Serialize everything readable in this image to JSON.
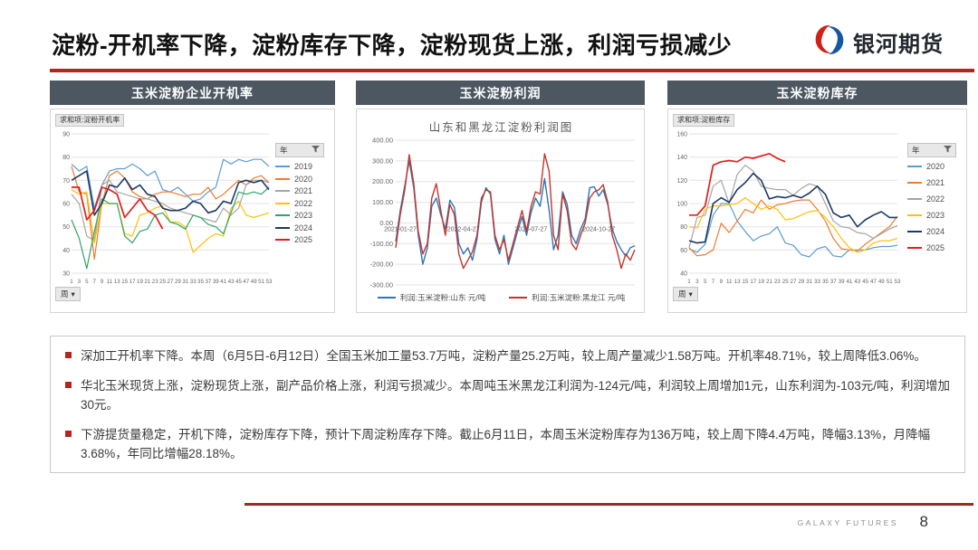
{
  "slide": {
    "title": "淀粉-开机率下降，淀粉库存下降，淀粉现货上涨，利润亏损减少",
    "logo_text": "银河期货",
    "footer_brand": "GALAXY FUTURES",
    "page_number": "8",
    "accent_red": "#b3251e",
    "header_bg": "#4d5761",
    "icons": {
      "dropdown": "▾"
    }
  },
  "panels": [
    {
      "header": "玉米淀粉企业开机率"
    },
    {
      "header": "玉米淀粉利润"
    },
    {
      "header": "玉米淀粉库存"
    }
  ],
  "chart_data": [
    {
      "type": "line",
      "title": "求和项:淀粉开机率",
      "legend_field": "年",
      "axis_field": "周",
      "x": [
        1,
        3,
        5,
        7,
        9,
        11,
        13,
        15,
        17,
        19,
        21,
        23,
        25,
        27,
        29,
        31,
        33,
        35,
        37,
        39,
        41,
        43,
        45,
        47,
        49,
        51,
        53
      ],
      "xlabel": "周",
      "ylabel": "",
      "ylim": [
        30,
        90
      ],
      "y_step": 10,
      "grid": true,
      "legend_position": "right",
      "series": [
        {
          "name": "2019",
          "color": "#5b9bd5",
          "stroke": 1.2,
          "values": [
            77,
            74,
            76,
            58,
            68,
            74,
            75,
            75,
            77,
            75,
            72,
            74,
            66,
            65,
            67,
            64,
            61,
            62,
            65,
            67,
            79,
            77,
            79,
            78,
            79,
            79,
            76
          ]
        },
        {
          "name": "2020",
          "color": "#ed7d31",
          "stroke": 1.2,
          "values": [
            76,
            65,
            64,
            36,
            60,
            72,
            74,
            71,
            65,
            63,
            62,
            64,
            65,
            65,
            64,
            63,
            64,
            64,
            67,
            62,
            64,
            67,
            70,
            68,
            71,
            72,
            69
          ]
        },
        {
          "name": "2021",
          "color": "#a5a5a5",
          "stroke": 1.2,
          "values": [
            64,
            60,
            46,
            44,
            68,
            70,
            65,
            64,
            63,
            62,
            62,
            61,
            60,
            58,
            57,
            56,
            55,
            54,
            53,
            52,
            58,
            55,
            58,
            68,
            70,
            70,
            69
          ]
        },
        {
          "name": "2022",
          "color": "#ffc000",
          "stroke": 1.2,
          "values": [
            66,
            64,
            65,
            43,
            60,
            60,
            60,
            47,
            46,
            55,
            56,
            58,
            59,
            52,
            52,
            50,
            39,
            42,
            45,
            47,
            46,
            58,
            61,
            55,
            54,
            55,
            56
          ]
        },
        {
          "name": "2023",
          "color": "#2fa463",
          "stroke": 1.2,
          "values": [
            53,
            45,
            32,
            48,
            62,
            60,
            60,
            46,
            43,
            48,
            49,
            55,
            56,
            52,
            51,
            49,
            55,
            54,
            51,
            50,
            47,
            56,
            65,
            64,
            65,
            64,
            67
          ]
        },
        {
          "name": "2024",
          "color": "#1f3864",
          "stroke": 1.6,
          "values": [
            70,
            72,
            74,
            55,
            60,
            68,
            67,
            71,
            66,
            68,
            64,
            63,
            58,
            57,
            57,
            58,
            61,
            60,
            56,
            57,
            61,
            60,
            69,
            70,
            69,
            70,
            66
          ]
        },
        {
          "name": "2025",
          "color": "#e01f1f",
          "stroke": 1.7,
          "values": [
            67,
            67,
            53,
            57,
            67,
            66,
            64,
            54,
            58,
            62,
            57,
            55,
            49
          ]
        }
      ]
    },
    {
      "type": "line",
      "title": "山东和黑龙江淀粉利润图",
      "xlabel": "",
      "ylabel": "元/吨",
      "ylim": [
        -300,
        400
      ],
      "y_step": 100,
      "grid": true,
      "legend_position": "bottom",
      "x_ticks": [
        {
          "label": "2021-01-27",
          "index": 1
        },
        {
          "label": "2022-04-27",
          "index": 15
        },
        {
          "label": "2023-07-27",
          "index": 30
        },
        {
          "label": "2024-10-27",
          "index": 45
        }
      ],
      "series": [
        {
          "name": "利润:玉米淀粉:山东 元/吨",
          "color": "#2e75b6",
          "stroke": 1.4,
          "values": [
            -90,
            60,
            180,
            300,
            170,
            -60,
            -200,
            -120,
            80,
            120,
            40,
            -30,
            110,
            75,
            -100,
            -150,
            -120,
            -180,
            -80,
            100,
            170,
            140,
            -80,
            -150,
            -60,
            -200,
            -120,
            -40,
            30,
            -60,
            50,
            120,
            80,
            215,
            60,
            -130,
            -60,
            150,
            90,
            -60,
            -100,
            -30,
            20,
            170,
            175,
            130,
            160,
            90,
            -30,
            -90,
            -130,
            -160,
            -120,
            -110
          ]
        },
        {
          "name": "利润:玉米淀粉:黑龙江 元/吨",
          "color": "#c3362b",
          "stroke": 1.4,
          "values": [
            -120,
            40,
            160,
            330,
            190,
            -40,
            -150,
            -100,
            120,
            190,
            60,
            -60,
            90,
            40,
            -150,
            -220,
            -180,
            -140,
            -60,
            120,
            160,
            150,
            -60,
            -130,
            -80,
            -180,
            -100,
            -20,
            60,
            -40,
            80,
            150,
            140,
            335,
            250,
            -60,
            -130,
            140,
            60,
            -100,
            -130,
            -60,
            0,
            120,
            150,
            160,
            185,
            100,
            -60,
            -130,
            -220,
            -150,
            -180,
            -130
          ]
        }
      ]
    },
    {
      "type": "line",
      "title": "求和项:淀粉库存",
      "legend_field": "年",
      "axis_field": "周",
      "x": [
        1,
        3,
        5,
        7,
        9,
        11,
        13,
        15,
        17,
        19,
        21,
        23,
        25,
        27,
        29,
        31,
        33,
        35,
        37,
        39,
        41,
        43,
        45,
        47,
        49,
        51,
        53
      ],
      "xlabel": "周",
      "ylabel": "",
      "ylim": [
        40,
        160
      ],
      "y_step": 20,
      "grid": true,
      "legend_position": "right",
      "series": [
        {
          "name": "2020",
          "color": "#5b9bd5",
          "stroke": 1.2,
          "values": [
            61,
            58,
            65,
            90,
            100,
            100,
            85,
            76,
            68,
            72,
            74,
            80,
            66,
            64,
            56,
            54,
            61,
            63,
            55,
            54,
            60,
            60,
            60,
            62,
            63,
            63,
            64
          ]
        },
        {
          "name": "2021",
          "color": "#ed7d31",
          "stroke": 1.2,
          "values": [
            62,
            55,
            56,
            60,
            83,
            75,
            85,
            95,
            92,
            103,
            95,
            99,
            100,
            102,
            103,
            103,
            95,
            85,
            70,
            61,
            60,
            59,
            65,
            70,
            75,
            80,
            89
          ]
        },
        {
          "name": "2022",
          "color": "#a5a5a5",
          "stroke": 1.2,
          "values": [
            62,
            88,
            90,
            115,
            120,
            100,
            125,
            133,
            128,
            115,
            113,
            112,
            112,
            107,
            113,
            117,
            115,
            100,
            85,
            80,
            79,
            75,
            74,
            70,
            74,
            78,
            81
          ]
        },
        {
          "name": "2023",
          "color": "#ffc000",
          "stroke": 1.2,
          "values": [
            80,
            79,
            95,
            98,
            98,
            99,
            100,
            105,
            100,
            95,
            98,
            95,
            86,
            87,
            90,
            93,
            94,
            88,
            80,
            70,
            62,
            58,
            60,
            66,
            68,
            68,
            70
          ]
        },
        {
          "name": "2024",
          "color": "#1f3864",
          "stroke": 1.6,
          "values": [
            68,
            66,
            67,
            100,
            105,
            101,
            112,
            118,
            126,
            120,
            104,
            106,
            105,
            107,
            105,
            109,
            115,
            108,
            92,
            88,
            90,
            80,
            86,
            90,
            93,
            88,
            88
          ]
        },
        {
          "name": "2025",
          "color": "#e01f1f",
          "stroke": 1.7,
          "values": [
            90,
            90,
            98,
            133,
            136,
            137,
            136,
            140,
            139,
            141,
            143,
            139,
            136
          ]
        }
      ]
    }
  ],
  "notes": {
    "bullets": [
      "深加工开机率下降。本周（6月5日-6月12日）全国玉米加工量53.7万吨，淀粉产量25.2万吨，较上周产量减少1.58万吨。开机率48.71%，较上周降低3.06%。",
      "华北玉米现货上涨，淀粉现货上涨，副产品价格上涨，利润亏损减少。本周吨玉米黑龙江利润为-124元/吨，利润较上周增加1元，山东利润为-103元/吨，利润增加30元。",
      "下游提货量稳定，开机下降，淀粉库存下降，预计下周淀粉库存下降。截止6月11日，本周玉米淀粉库存为136万吨，较上周下降4.4万吨，降幅3.13%，月降幅3.68%，年同比增幅28.18%。"
    ]
  }
}
